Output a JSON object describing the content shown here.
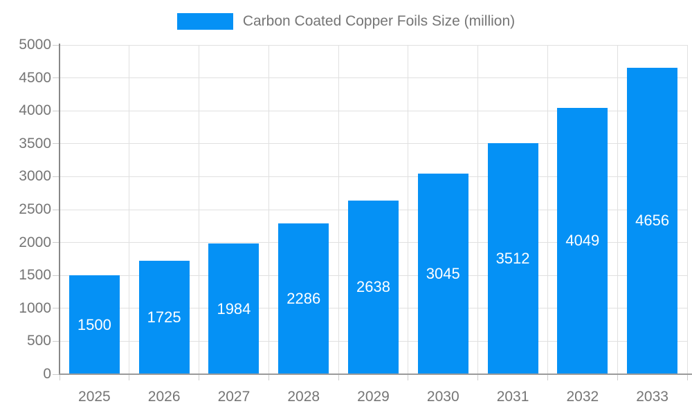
{
  "chart_data": {
    "type": "bar",
    "title": "Carbon Coated Copper Foils Size (million)",
    "legend": {
      "position": "top",
      "entries": [
        "Carbon Coated Copper Foils Size (million)"
      ]
    },
    "categories": [
      "2025",
      "2026",
      "2027",
      "2028",
      "2029",
      "2030",
      "2031",
      "2032",
      "2033"
    ],
    "values": [
      1500,
      1725,
      1984,
      2286,
      2638,
      3045,
      3512,
      4049,
      4656
    ],
    "data_labels": [
      "1500",
      "1725",
      "1984",
      "2286",
      "2638",
      "3045",
      "3512",
      "4049",
      "4656"
    ],
    "xlabel": "",
    "ylabel": "",
    "ylim": [
      0,
      5000
    ],
    "ytick_step": 500,
    "ytick_labels": [
      "0",
      "500",
      "1000",
      "1500",
      "2000",
      "2500",
      "3000",
      "3500",
      "4000",
      "4500",
      "5000"
    ],
    "grid": "horizontal-and-vertical"
  },
  "colors": {
    "bar": "#0591f5",
    "bar_label": "#ffffff",
    "axis_text": "#757575",
    "legend_text": "#757575",
    "gridline": "#e0e0e0",
    "tick": "#cccccc",
    "axis_line_y": "#878787",
    "axis_line_x": "#9a9a9a",
    "background": "#ffffff"
  }
}
